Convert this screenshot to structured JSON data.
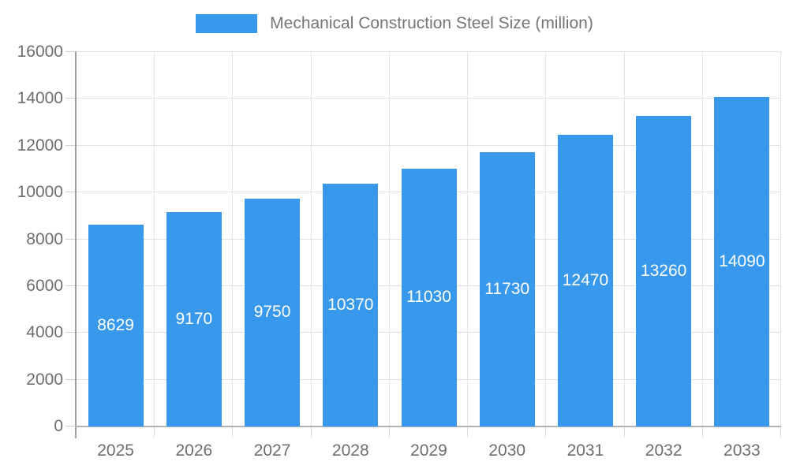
{
  "legend": {
    "label": "Mechanical Construction Steel Size (million)",
    "swatch_color": "#3899EC"
  },
  "chart_data": {
    "type": "bar",
    "title": "Mechanical Construction Steel Size (million)",
    "categories": [
      "2025",
      "2026",
      "2027",
      "2028",
      "2029",
      "2030",
      "2031",
      "2032",
      "2033"
    ],
    "series": [
      {
        "name": "Mechanical Construction Steel Size (million)",
        "values": [
          8629,
          9170,
          9750,
          10370,
          11030,
          11730,
          12470,
          13260,
          14090
        ],
        "color": "#3899EC"
      }
    ],
    "value_labels": [
      8629,
      9170,
      9750,
      10370,
      11030,
      11730,
      12470,
      13260,
      14090
    ],
    "value_label_position": "inside-center",
    "xlabel": "",
    "ylabel": "",
    "ylim": [
      0,
      16000
    ],
    "yticks": [
      0,
      2000,
      4000,
      6000,
      8000,
      10000,
      12000,
      14000,
      16000
    ],
    "grid": true,
    "legend_position": "top"
  },
  "colors": {
    "bar": "#3899EC",
    "h_gridline": "#E0E0E0",
    "v_gridline": "#E6E6E6",
    "y_axis_line": "#9E9E9E",
    "x_axis_line": "#B3B3B3",
    "y_tick": "#CFCFCF",
    "x_tick": "#DCDCDC",
    "tick_label": "#6E6E6E",
    "legend_text": "#757575",
    "value_label": "#FFFFFF",
    "background": "#FFFFFF"
  }
}
